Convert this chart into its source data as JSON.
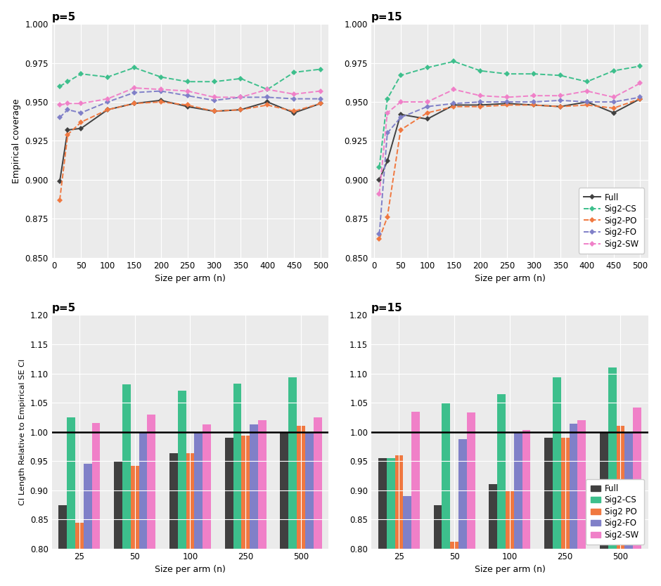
{
  "line_x": [
    10,
    25,
    50,
    100,
    150,
    200,
    250,
    300,
    350,
    400,
    450,
    500
  ],
  "p5_full": [
    0.899,
    0.932,
    0.933,
    0.945,
    0.949,
    0.951,
    0.947,
    0.944,
    0.945,
    0.95,
    0.943,
    0.949
  ],
  "p5_cs": [
    0.96,
    0.963,
    0.968,
    0.966,
    0.972,
    0.966,
    0.963,
    0.963,
    0.965,
    0.958,
    0.969,
    0.971
  ],
  "p5_po": [
    0.887,
    0.929,
    0.937,
    0.945,
    0.949,
    0.95,
    0.948,
    0.944,
    0.945,
    0.948,
    0.944,
    0.949
  ],
  "p5_fo": [
    0.94,
    0.945,
    0.943,
    0.95,
    0.956,
    0.957,
    0.954,
    0.951,
    0.953,
    0.953,
    0.952,
    0.952
  ],
  "p5_sw": [
    0.948,
    0.949,
    0.949,
    0.952,
    0.959,
    0.958,
    0.957,
    0.953,
    0.953,
    0.958,
    0.955,
    0.957
  ],
  "p15_full": [
    0.9,
    0.912,
    0.942,
    0.939,
    0.948,
    0.948,
    0.949,
    0.948,
    0.947,
    0.95,
    0.943,
    0.952
  ],
  "p15_cs": [
    0.908,
    0.952,
    0.967,
    0.972,
    0.976,
    0.97,
    0.968,
    0.968,
    0.967,
    0.963,
    0.97,
    0.973
  ],
  "p15_po": [
    0.862,
    0.876,
    0.932,
    0.943,
    0.947,
    0.947,
    0.948,
    0.948,
    0.947,
    0.948,
    0.946,
    0.952
  ],
  "p15_fo": [
    0.865,
    0.93,
    0.94,
    0.947,
    0.949,
    0.95,
    0.95,
    0.95,
    0.951,
    0.95,
    0.95,
    0.953
  ],
  "p15_sw": [
    0.891,
    0.943,
    0.95,
    0.95,
    0.958,
    0.954,
    0.953,
    0.954,
    0.954,
    0.957,
    0.953,
    0.962
  ],
  "bar_xlabels": [
    "25",
    "50",
    "100",
    "250",
    "500"
  ],
  "p5_bar_full": [
    0.875,
    0.95,
    0.963,
    0.99,
    1.0
  ],
  "p5_bar_cs": [
    1.025,
    1.082,
    1.07,
    1.083,
    1.093
  ],
  "p5_bar_po": [
    0.845,
    0.942,
    0.963,
    0.994,
    1.01
  ],
  "p5_bar_fo": [
    0.945,
    1.0,
    1.0,
    1.013,
    1.0
  ],
  "p5_bar_sw": [
    1.015,
    1.03,
    1.013,
    1.02,
    1.025
  ],
  "p15_bar_full": [
    0.955,
    0.875,
    0.91,
    0.99,
    0.998
  ],
  "p15_bar_cs": [
    0.955,
    1.05,
    1.065,
    1.093,
    1.11
  ],
  "p15_bar_po": [
    0.96,
    0.812,
    0.9,
    0.99,
    1.01
  ],
  "p15_bar_fo": [
    0.89,
    0.988,
    0.998,
    1.014,
    1.0
  ],
  "p15_bar_sw": [
    1.035,
    1.033,
    1.003,
    1.02,
    1.042
  ],
  "color_full": "#404040",
  "color_cs": "#3dbf8c",
  "color_po": "#f07840",
  "color_fo": "#8080c8",
  "color_sw": "#f080c8",
  "ylim_line": [
    0.85,
    1.0
  ],
  "ylim_bar": [
    0.8,
    1.2
  ],
  "yticks_line": [
    0.85,
    0.875,
    0.9,
    0.925,
    0.95,
    0.975,
    1.0
  ],
  "yticks_bar": [
    0.8,
    0.85,
    0.9,
    0.95,
    1.0,
    1.05,
    1.1,
    1.15,
    1.2
  ],
  "xticks_line": [
    0,
    50,
    100,
    150,
    200,
    250,
    300,
    350,
    400,
    450,
    500
  ],
  "legend_line": [
    "Full",
    "Sig2-CS",
    "Sig2-PO",
    "Sig2-FO",
    "Sig2-SW"
  ],
  "legend_bar": [
    "Full",
    "Sig2-CS",
    "Sig2 PO",
    "Sig2-FO",
    "Sig2-SW"
  ],
  "title_p5": "p=5",
  "title_p15": "p=15",
  "ylabel_line": "Empirical coverage",
  "ylabel_bar": "CI Length Relative to Empirical SE CI",
  "xlabel": "Size per arm (n)"
}
